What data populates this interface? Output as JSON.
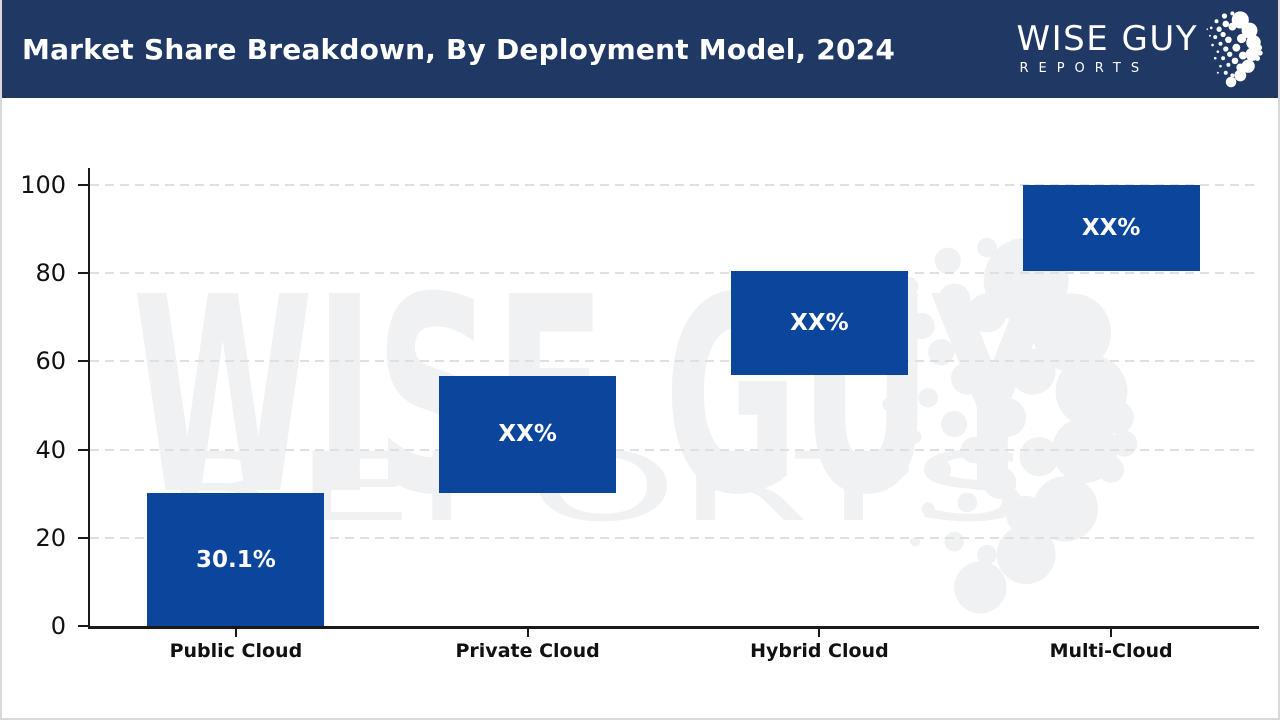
{
  "header": {
    "title": "Market Share Breakdown, By Deployment Model, 2024",
    "logo": {
      "brand_top": "WISE GUY",
      "brand_bottom": "REPORTS"
    }
  },
  "watermark": {
    "line1": "WISE GUY",
    "line2": "REPORTS"
  },
  "chart_data": {
    "type": "bar",
    "subtype": "waterfall",
    "title": "Market Share Breakdown, By Deployment Model, 2024",
    "categories": [
      "Public Cloud",
      "Private Cloud",
      "Hybrid Cloud",
      "Multi-Cloud"
    ],
    "segments": [
      {
        "category": "Public Cloud",
        "start": 0,
        "end": 30.1,
        "label": "30.1%"
      },
      {
        "category": "Private Cloud",
        "start": 30.1,
        "end": 56.8,
        "label": "XX%"
      },
      {
        "category": "Hybrid Cloud",
        "start": 56.8,
        "end": 80.4,
        "label": "XX%"
      },
      {
        "category": "Multi-Cloud",
        "start": 80.5,
        "end": 100,
        "label": "XX%"
      }
    ],
    "values_display": [
      "30.1%",
      "XX%",
      "XX%",
      "XX%"
    ],
    "yticks": [
      0,
      20,
      40,
      60,
      80,
      100
    ],
    "ylim": [
      0,
      104
    ],
    "xlabel": "",
    "ylabel": "",
    "grid": "dashed-horizontal",
    "legend": "none",
    "bar_color": "#0b459c",
    "label_color": "#ffffff"
  },
  "colors": {
    "header_bg": "#203864",
    "bar": "#0b459c",
    "grid_line": "#e0e0e0",
    "axis": "#1a1a1a",
    "page_border": "#d9d9d9",
    "watermark": "#eff1f3"
  }
}
